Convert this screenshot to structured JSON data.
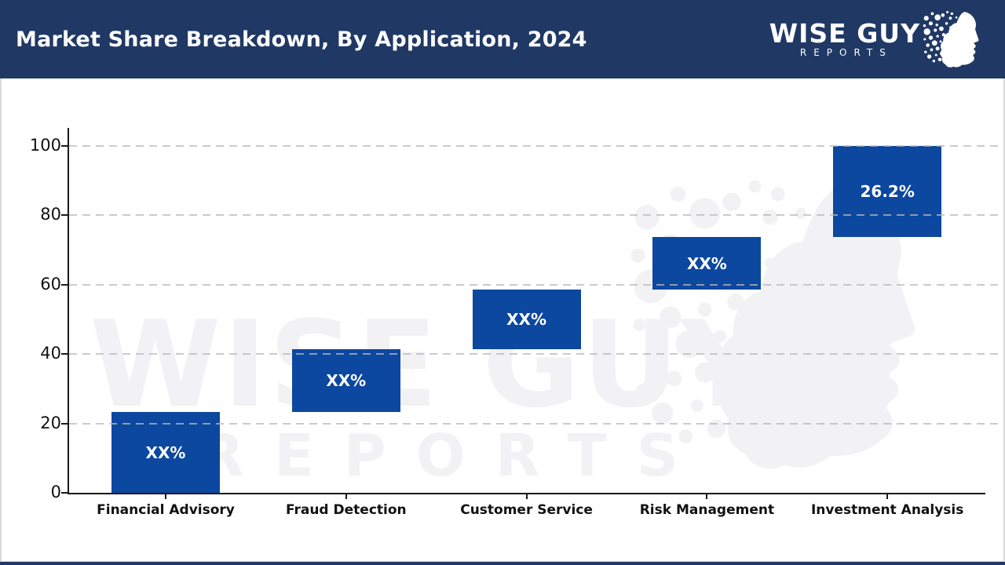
{
  "header": {
    "title": "Market Share Breakdown, By Application, 2024",
    "logo": {
      "line1": "WISE GUY",
      "line2": "REPORTS"
    }
  },
  "watermark": {
    "line1": "WISE GUY",
    "line2": "REPORTS"
  },
  "colors": {
    "header_bg": "#203864",
    "bar_fill": "#0c47a0",
    "bar_label_text": "#ffffff",
    "axis": "#1a1a1a",
    "gridline": "#bcbcbc",
    "watermark": "#f2f2f4",
    "background": "#ffffff"
  },
  "chart_data": {
    "type": "bar",
    "subtype": "waterfall",
    "title": "Market Share Breakdown, By Application, 2024",
    "xlabel": "",
    "ylabel": "",
    "categories": [
      "Financial Advisory",
      "Fraud Detection",
      "Customer Service",
      "Risk Management",
      "Investment Analysis"
    ],
    "segments": [
      {
        "category": "Financial Advisory",
        "start": 0,
        "end": 23.2,
        "value": 23.2,
        "label": "XX%"
      },
      {
        "category": "Fraud Detection",
        "start": 23.2,
        "end": 41.5,
        "value": 18.3,
        "label": "XX%"
      },
      {
        "category": "Customer Service",
        "start": 41.5,
        "end": 58.5,
        "value": 17.0,
        "label": "XX%"
      },
      {
        "category": "Risk Management",
        "start": 58.5,
        "end": 73.8,
        "value": 15.3,
        "label": "XX%"
      },
      {
        "category": "Investment Analysis",
        "start": 73.8,
        "end": 100,
        "value": 26.2,
        "label": "26.2%"
      }
    ],
    "yticks": [
      0,
      20,
      40,
      60,
      80,
      100
    ],
    "ylim": [
      0,
      105
    ],
    "bar_color": "#0c47a0",
    "grid": "horizontal-dashed",
    "legend": "none"
  }
}
